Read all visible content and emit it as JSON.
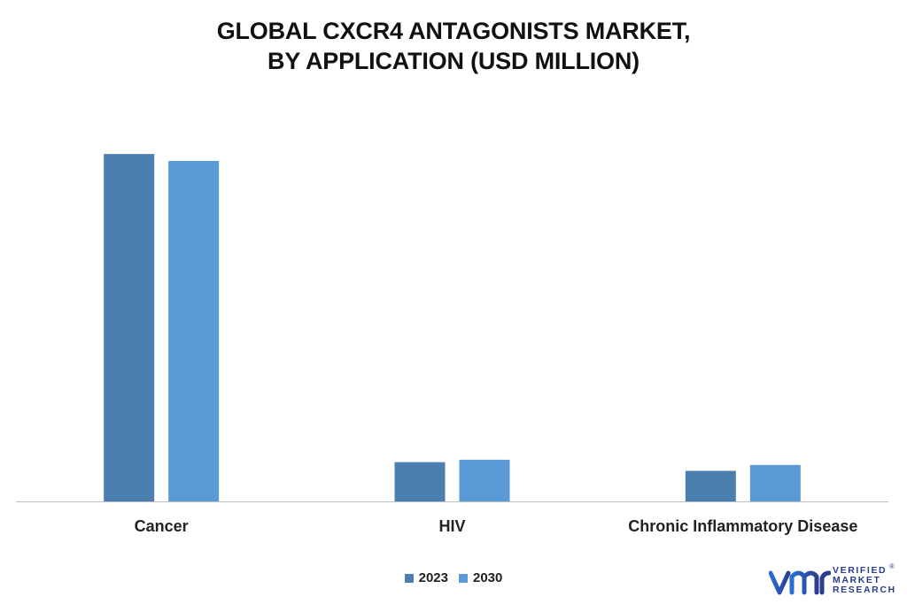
{
  "chart_data": {
    "type": "bar",
    "title": [
      "GLOBAL CXCR4 ANTAGONISTS MARKET,",
      "BY APPLICATION (USD MILLION)"
    ],
    "categories": [
      "Cancer",
      "HIV",
      "Chronic Inflammatory Disease"
    ],
    "series": [
      {
        "name": "2023",
        "color": "#4a7fb0",
        "values": [
          100,
          11.3,
          8.8
        ]
      },
      {
        "name": "2030",
        "color": "#5b9bd5",
        "values": [
          98,
          12.0,
          10.5
        ]
      }
    ],
    "ylim": [
      0,
      112
    ],
    "xlabel": "",
    "ylabel": "",
    "grid": false,
    "legend_position": "bottom-center"
  },
  "logo": {
    "icon": "vmr-logo-icon",
    "lines": [
      "VERIFIED",
      "MARKET",
      "RESEARCH"
    ],
    "mark": "®"
  }
}
